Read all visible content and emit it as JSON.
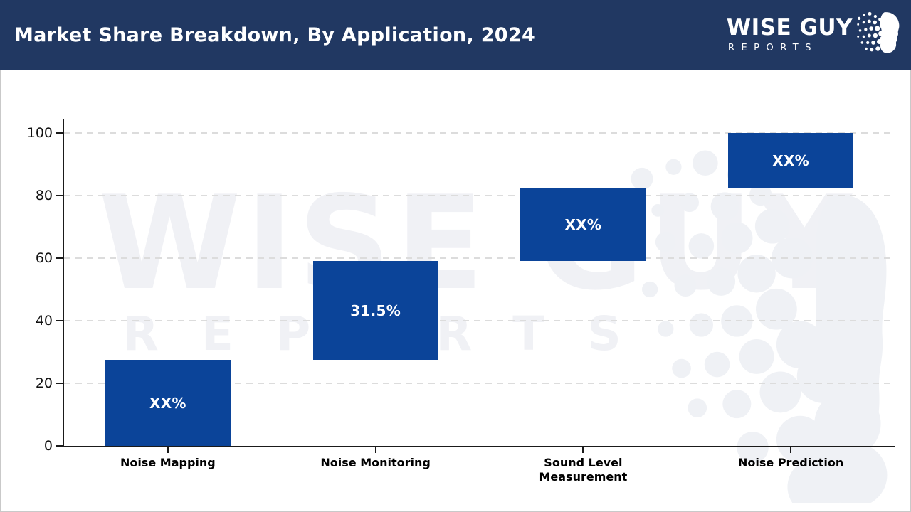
{
  "header": {
    "title": "Market Share Breakdown, By Application, 2024",
    "logo": {
      "primary": "WISE GUY",
      "secondary": "REPORTS"
    }
  },
  "watermark": {
    "primary": "WISE GUY",
    "secondary": "REPORTS"
  },
  "icons": {
    "logo_face": "face-profile-dots-icon",
    "watermark_face": "watermark-face-dots-icon"
  },
  "colors": {
    "page_bg": "#ffffff",
    "page_border": "#c9c9c9",
    "header_bg": "#213862",
    "header_text": "#ffffff",
    "bar": "#0b4499",
    "bar_label": "#ffffff",
    "grid": "#dcdcdc",
    "axis": "#1a1a1a",
    "tick_text": "#111111",
    "watermark": "#f0f1f5"
  },
  "chart_data": {
    "type": "bar",
    "subtype": "waterfall-floating-bars",
    "title": "Market Share Breakdown, By Application, 2024",
    "categories": [
      "Noise Mapping",
      "Noise Monitoring",
      "Sound Level Measurement",
      "Noise Prediction"
    ],
    "segments": [
      {
        "category": "Noise Mapping",
        "start": 0,
        "end": 27.5,
        "value": 27.5,
        "label": "XX%"
      },
      {
        "category": "Noise Monitoring",
        "start": 27.5,
        "end": 59,
        "value": 31.5,
        "label": "31.5%"
      },
      {
        "category": "Sound Level Measurement",
        "start": 59,
        "end": 82.5,
        "value": 23.5,
        "label": "XX%"
      },
      {
        "category": "Noise Prediction",
        "start": 82.5,
        "end": 100,
        "value": 17.5,
        "label": "XX%"
      }
    ],
    "xlabel": "",
    "ylabel": "",
    "ylim": [
      0,
      100
    ],
    "yticks": [
      0,
      20,
      40,
      60,
      80,
      100
    ],
    "grid": "horizontal-dashed",
    "legend": "none",
    "bar_color": "#0b4499",
    "value_label_color": "#ffffff"
  }
}
